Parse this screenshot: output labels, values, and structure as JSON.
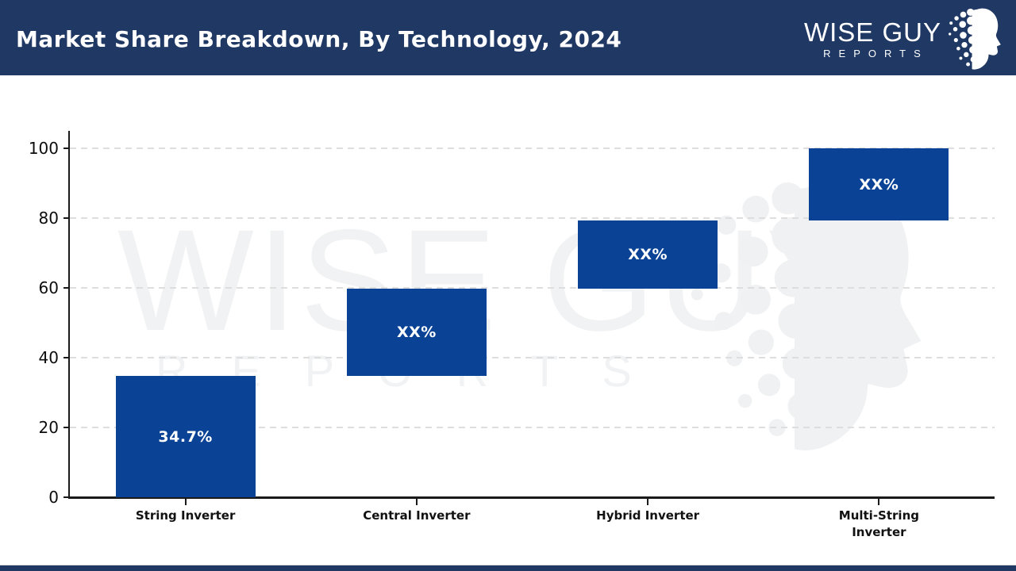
{
  "header": {
    "title": "Market Share Breakdown, By Technology, 2024",
    "brand_line1": "WISE GUY",
    "brand_line2": "REPORTS",
    "bg_color": "#1f3864"
  },
  "watermark": {
    "line1": "WISE GUY",
    "line2": "REPORTS"
  },
  "chart_data": {
    "type": "bar",
    "subtype": "floating-waterfall",
    "title": "Market Share Breakdown, By Technology, 2024",
    "categories": [
      "String Inverter",
      "Central Inverter",
      "Hybrid Inverter",
      "Multi-String Inverter"
    ],
    "categories_display": [
      "String Inverter",
      "Central Inverter",
      "Hybrid Inverter",
      "Multi-String\nInverter"
    ],
    "series": [
      {
        "name": "Market share (%)",
        "segments": [
          {
            "category": "String Inverter",
            "start": 0,
            "end": 34.7,
            "label": "34.7%"
          },
          {
            "category": "Central Inverter",
            "start": 34.7,
            "end": 59.8,
            "label": "XX%"
          },
          {
            "category": "Hybrid Inverter",
            "start": 59.8,
            "end": 79.3,
            "label": "XX%"
          },
          {
            "category": "Multi-String Inverter",
            "start": 79.3,
            "end": 100,
            "label": "XX%"
          }
        ]
      }
    ],
    "yticks": [
      0,
      20,
      40,
      60,
      80,
      100
    ],
    "ylim": [
      0,
      105
    ],
    "xlabel": "",
    "ylabel": "",
    "legend": "none",
    "grid": "horizontal-dashed",
    "bar_color": "#0a4296",
    "bar_label_color": "#ffffff",
    "axis_color": "#1a1a1a",
    "grid_color": "#dedede",
    "watermark_color": "#f1f2f3"
  }
}
